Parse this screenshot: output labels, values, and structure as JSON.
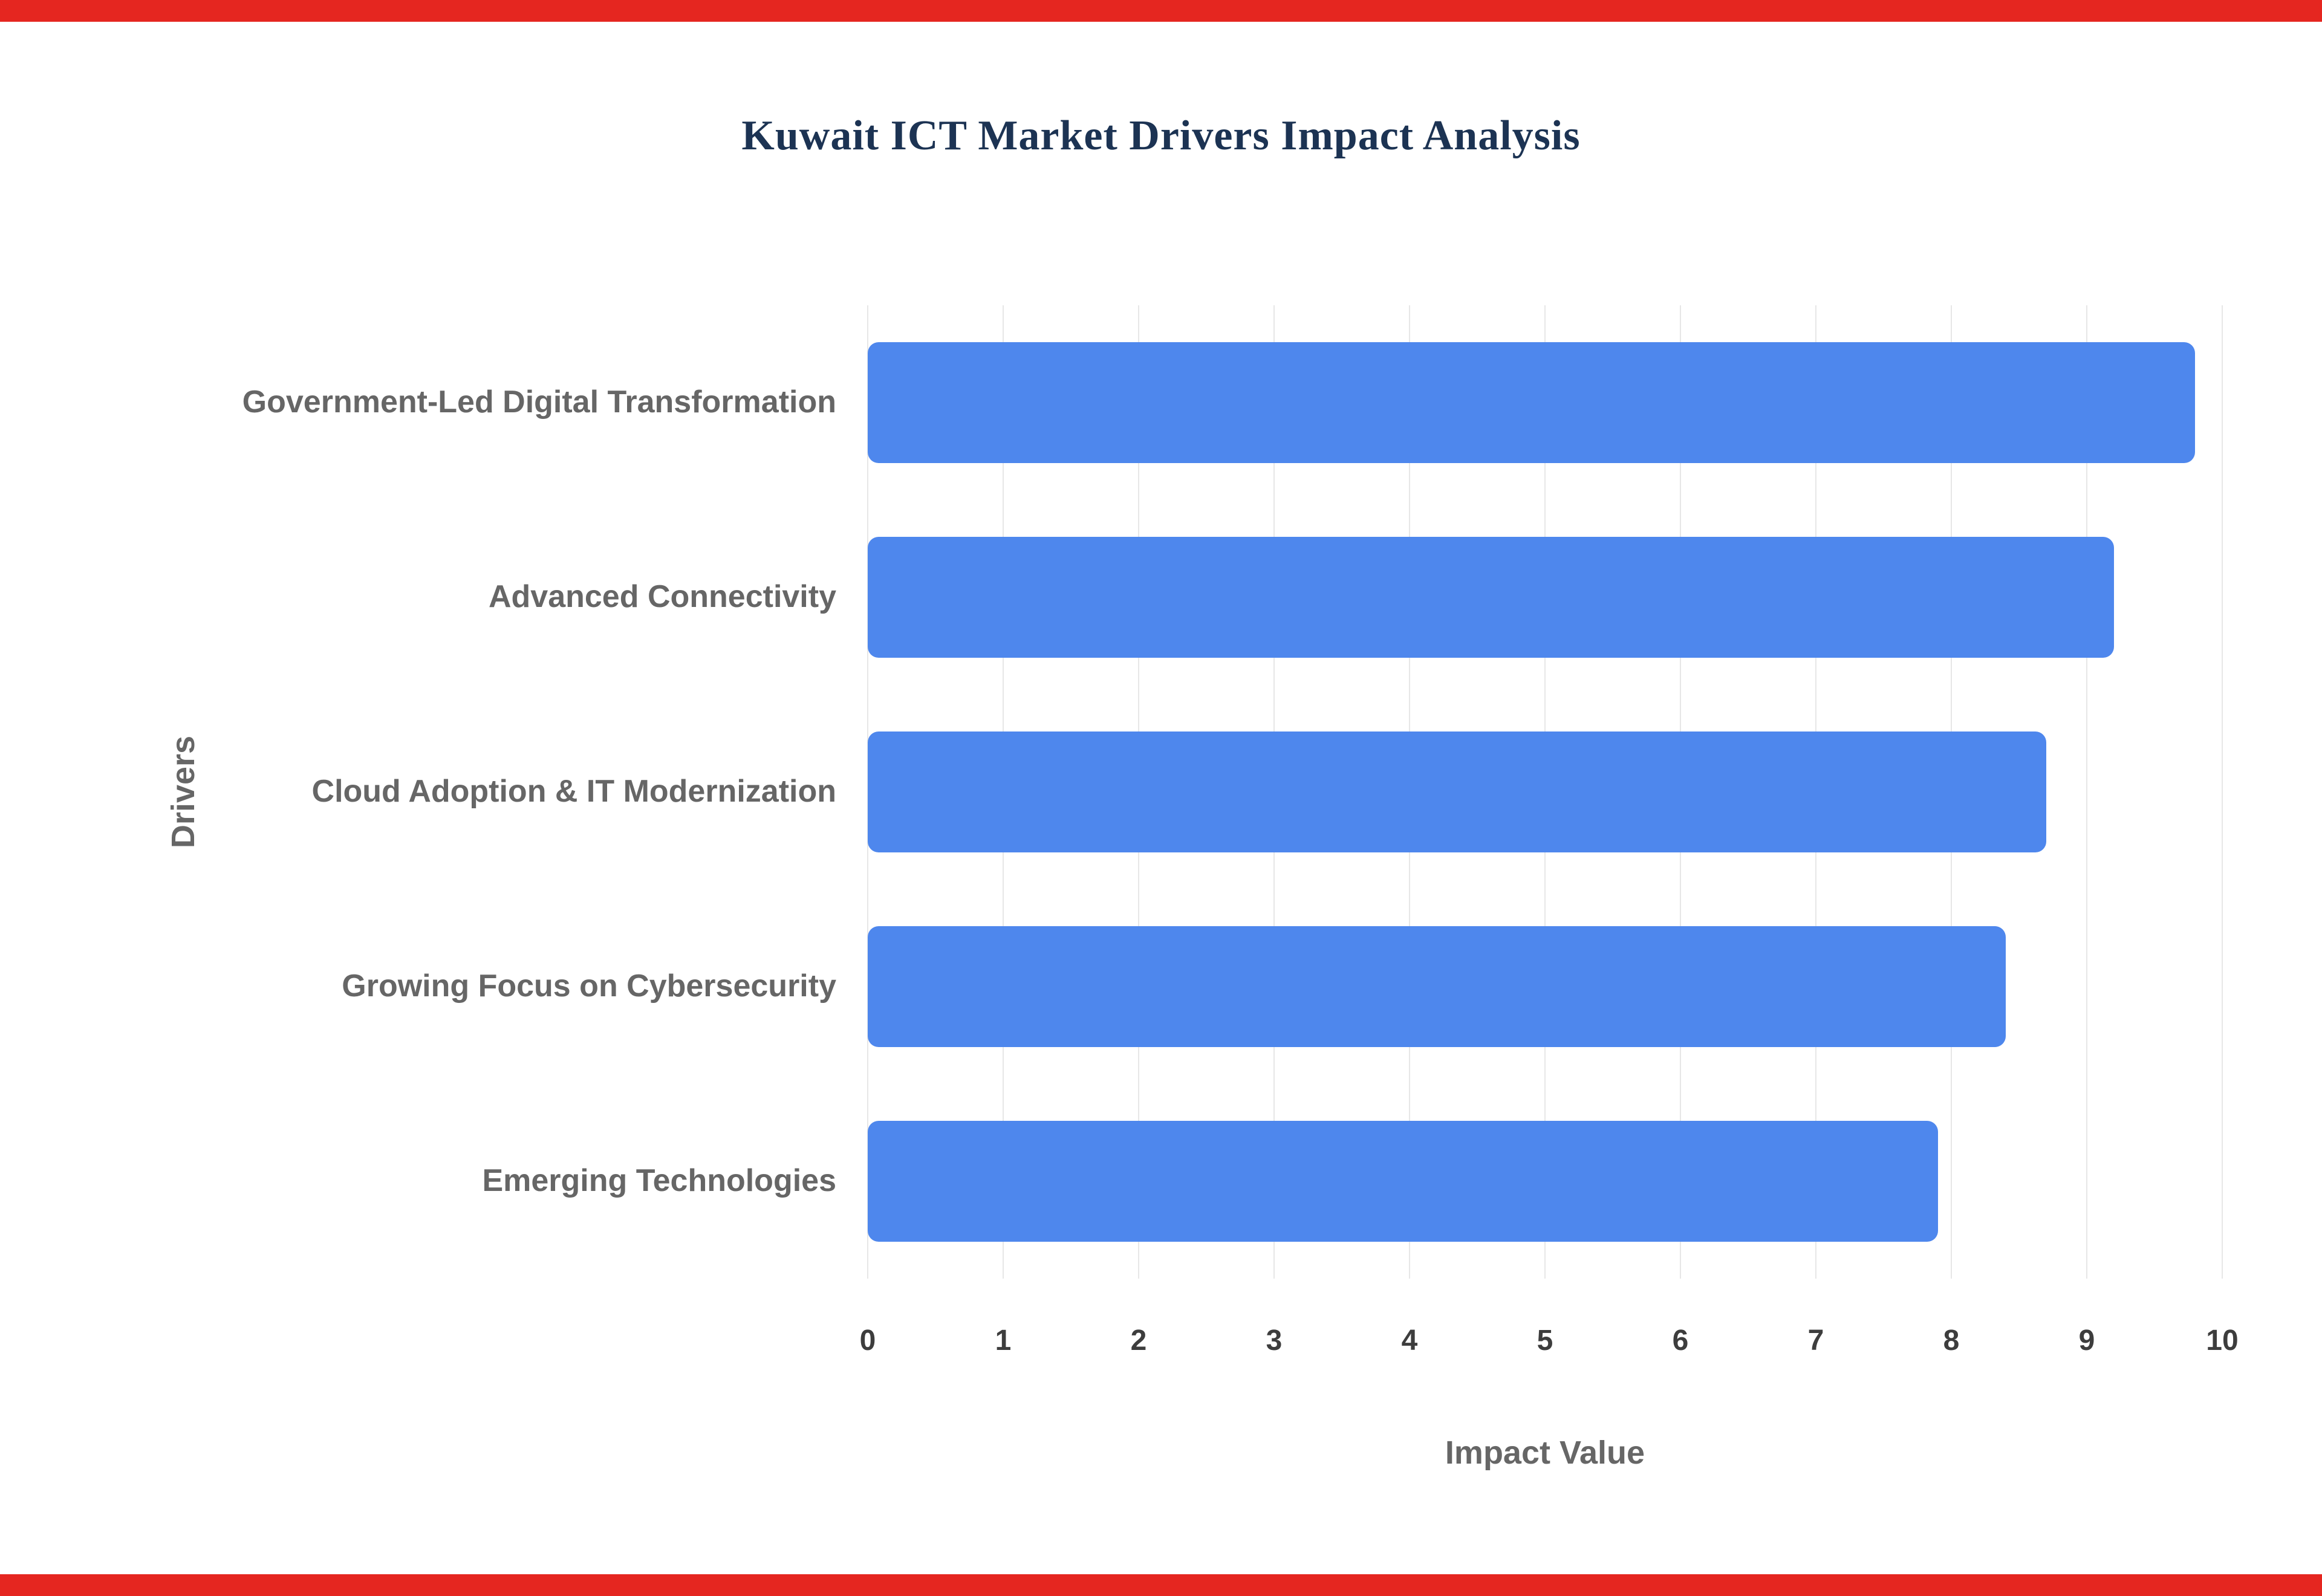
{
  "page": {
    "top_strip_color": "#e52620",
    "bottom_strip_color": "#e52620",
    "background_color": "#ffffff"
  },
  "chart_data": {
    "type": "bar",
    "orientation": "horizontal",
    "title": "Kuwait ICT Market Drivers Impact Analysis",
    "title_color": "#1c3353",
    "categories": [
      "Government-Led Digital Transformation",
      "Advanced Connectivity",
      "Cloud Adoption & IT Modernization",
      "Growing Focus on Cybersecurity",
      "Emerging Technologies"
    ],
    "values": [
      9.8,
      9.2,
      8.7,
      8.4,
      7.9
    ],
    "xlabel": "Impact Value",
    "ylabel": "Drivers",
    "xlim": [
      0,
      10
    ],
    "xticks": [
      0,
      1,
      2,
      3,
      4,
      5,
      6,
      7,
      8,
      9,
      10
    ],
    "bar_color": "#4e87ed",
    "grid": true,
    "gridline_color": "#e7e7e7",
    "label_color": "#666666",
    "tick_color": "#3d3d3d",
    "legend": "none"
  }
}
